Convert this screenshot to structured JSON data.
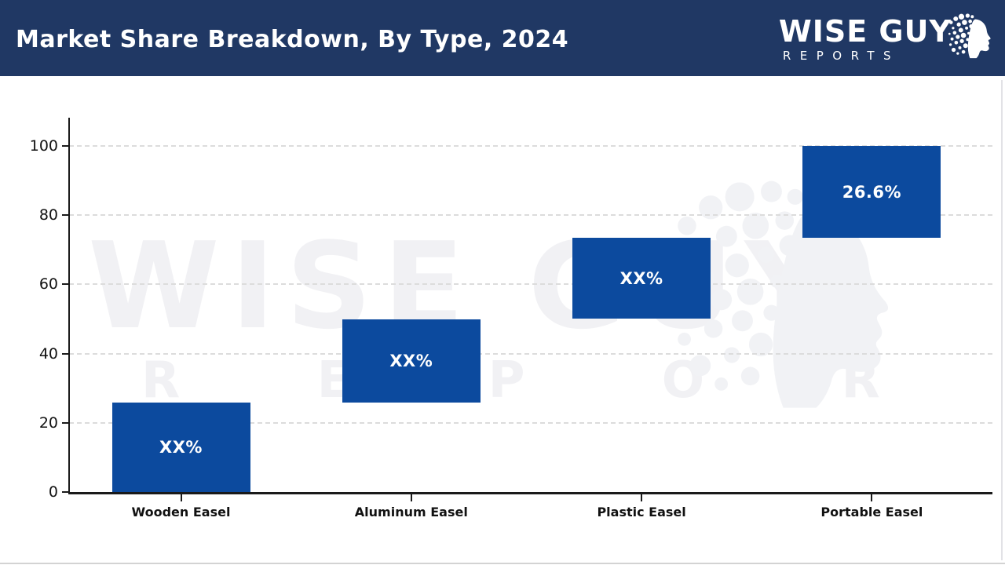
{
  "header": {
    "title": "Market Share Breakdown, By Type, 2024",
    "logo": {
      "line1": "WISE GUY",
      "line2": "REPORTS"
    }
  },
  "watermark": {
    "line1": "WISE GUY",
    "line2": "R E P O R T S"
  },
  "colors": {
    "header_bg": "#203864",
    "bar": "#0c4a9e",
    "axis": "#1a1a1a",
    "gridline": "#dcdcdc",
    "bar_label_text": "#ffffff",
    "watermark": "#f1f1f4"
  },
  "chart_data": {
    "type": "bar",
    "subtype": "waterfall-floating-segments",
    "title": "Market Share Breakdown, By Type, 2024",
    "categories": [
      "Wooden Easel",
      "Aluminum Easel",
      "Plastic Easel",
      "Portable Easel"
    ],
    "segments": [
      {
        "category": "Wooden Easel",
        "start": 0,
        "end": 25.8,
        "value": 25.8,
        "label": "XX%"
      },
      {
        "category": "Aluminum Easel",
        "start": 25.8,
        "end": 50,
        "value": 24.2,
        "label": "XX%"
      },
      {
        "category": "Plastic Easel",
        "start": 50,
        "end": 73.4,
        "value": 23.4,
        "label": "XX%"
      },
      {
        "category": "Portable Easel",
        "start": 73.4,
        "end": 100,
        "value": 26.6,
        "label": "26.6%"
      }
    ],
    "xlabel": "",
    "ylabel": "",
    "ylim": [
      0,
      100
    ],
    "yticks": [
      0,
      20,
      40,
      60,
      80,
      100
    ],
    "grid": "horizontal dashed",
    "legend": "none"
  }
}
